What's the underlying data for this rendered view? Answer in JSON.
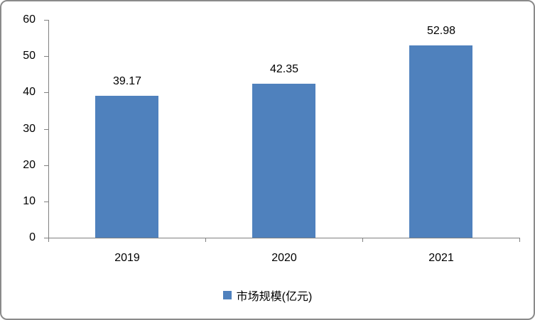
{
  "chart_data": {
    "type": "bar",
    "title": "",
    "xlabel": "",
    "ylabel": "",
    "categories": [
      "2019",
      "2020",
      "2021"
    ],
    "series": [
      {
        "name": "市场规模(亿元)",
        "values": [
          39.17,
          42.35,
          52.98
        ]
      }
    ],
    "data_labels": [
      "39.17",
      "42.35",
      "52.98"
    ],
    "ylim": [
      0,
      60
    ],
    "yticks": [
      0,
      10,
      20,
      30,
      40,
      50,
      60
    ],
    "grid": false,
    "legend": {
      "position": "bottom",
      "label": "市场规模(亿元)"
    },
    "colors": {
      "bar": "#4F81BD",
      "axis": "#808080",
      "border": "#8A8A8A",
      "text": "#000000"
    }
  }
}
